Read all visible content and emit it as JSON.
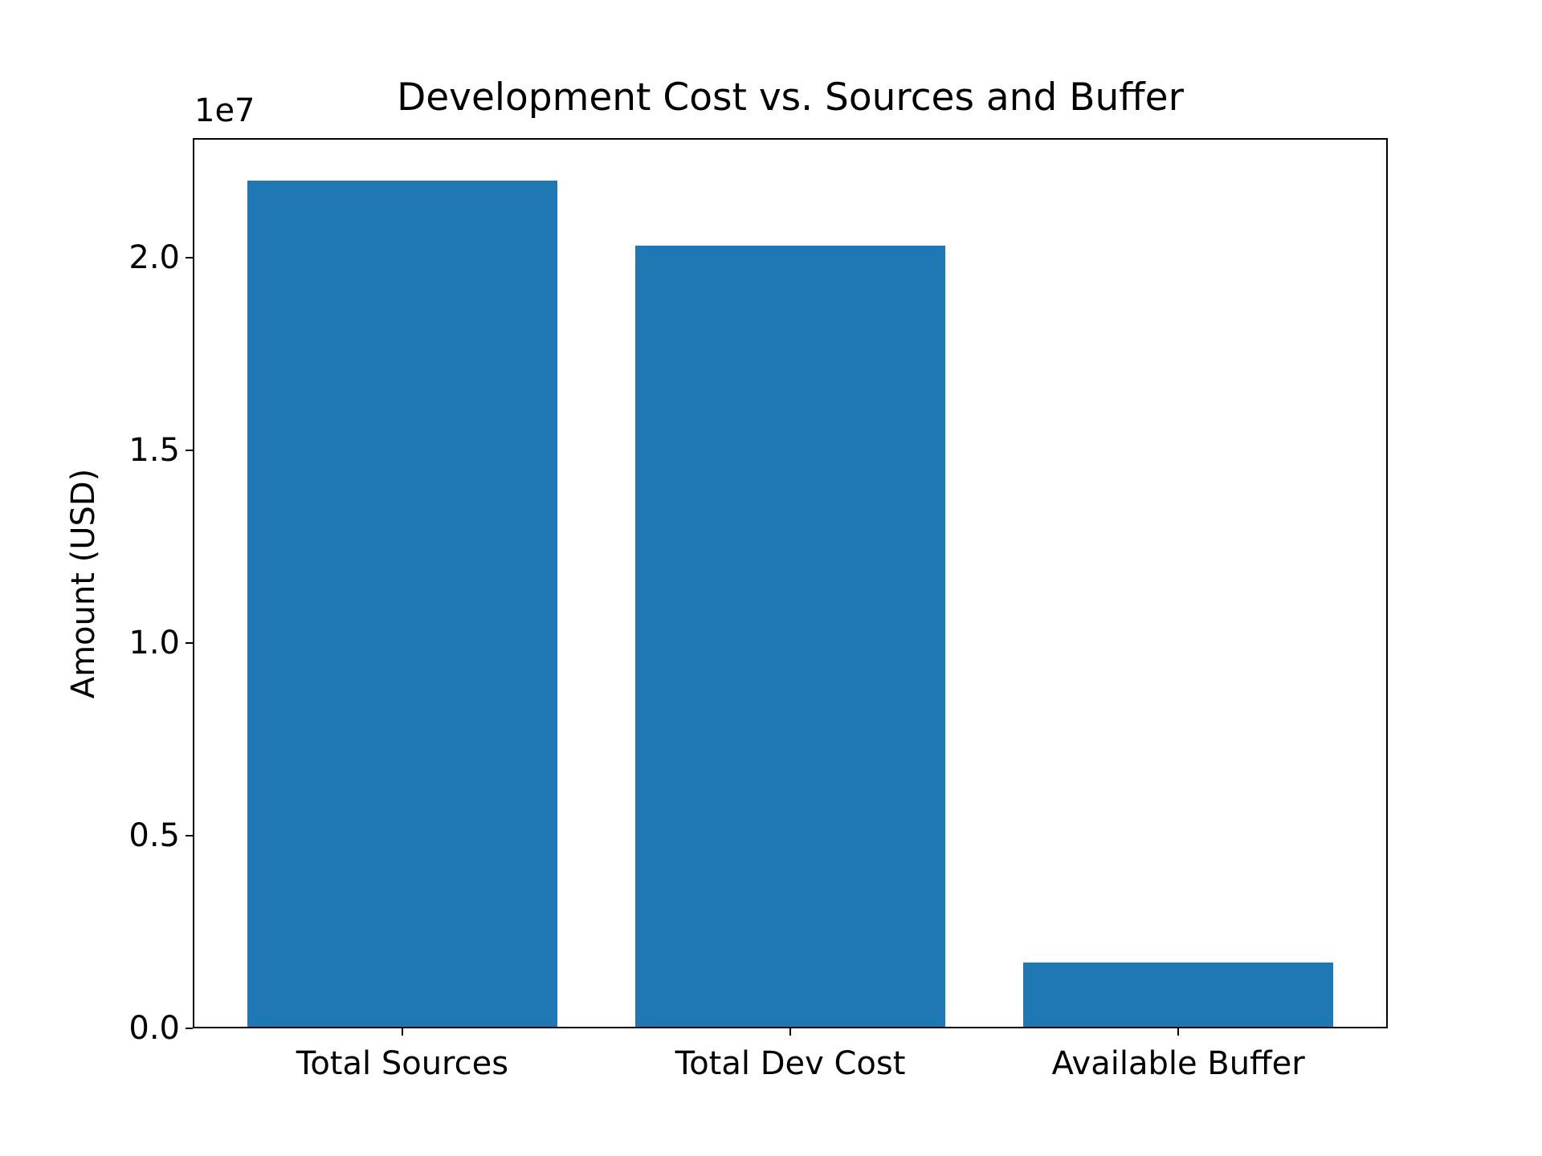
{
  "chart_data": {
    "type": "bar",
    "title": "Development Cost vs. Sources and Buffer",
    "xlabel": "",
    "ylabel": "Amount (USD)",
    "y_offset_label": "1e7",
    "categories": [
      "Total Sources",
      "Total Dev Cost",
      "Available Buffer"
    ],
    "values": [
      22000000,
      20300000,
      1700000
    ],
    "bar_color": "#1f77b4",
    "ylim": [
      0,
      23100000
    ],
    "xlim": [
      -0.54,
      2.54
    ],
    "bar_width_units": 0.8,
    "yticks": [
      {
        "value": 0,
        "label": "0.0"
      },
      {
        "value": 5000000,
        "label": "0.5"
      },
      {
        "value": 10000000,
        "label": "1.0"
      },
      {
        "value": 15000000,
        "label": "1.5"
      },
      {
        "value": 20000000,
        "label": "2.0"
      }
    ],
    "grid": false,
    "legend": "none"
  }
}
